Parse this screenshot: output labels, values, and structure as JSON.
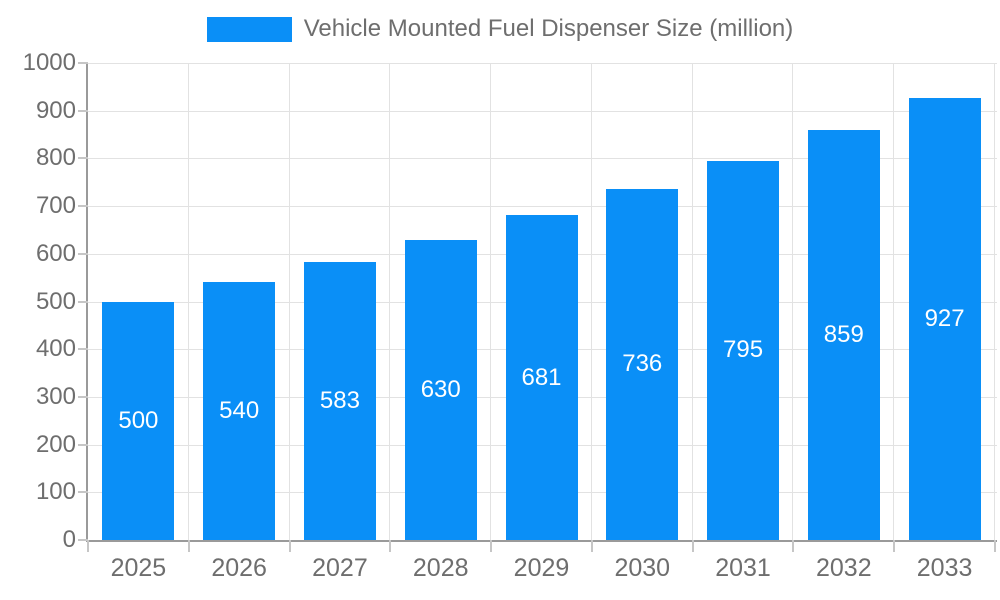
{
  "legend": {
    "label": "Vehicle Mounted Fuel Dispenser Size (million)"
  },
  "colors": {
    "bar": "#0a8ff7",
    "grid": "#e2e2e2",
    "axis": "#9a9a9a",
    "tick": "#c6c6c6",
    "text": "#6e6e6e",
    "bar_label": "#ffffff",
    "background": "#ffffff"
  },
  "chart_data": {
    "type": "bar",
    "title": "Vehicle Mounted Fuel Dispenser Size (million)",
    "categories": [
      "2025",
      "2026",
      "2027",
      "2028",
      "2029",
      "2030",
      "2031",
      "2032",
      "2033"
    ],
    "values": [
      500,
      540,
      583,
      630,
      681,
      736,
      795,
      859,
      927
    ],
    "xlabel": "",
    "ylabel": "",
    "ylim": [
      0,
      1000
    ],
    "ytick_step": 100,
    "ytick_labels": [
      "0",
      "100",
      "200",
      "300",
      "400",
      "500",
      "600",
      "700",
      "800",
      "900",
      "1000"
    ],
    "grid": true,
    "legend_position": "top-center",
    "bar_label_position": "inside-center"
  }
}
